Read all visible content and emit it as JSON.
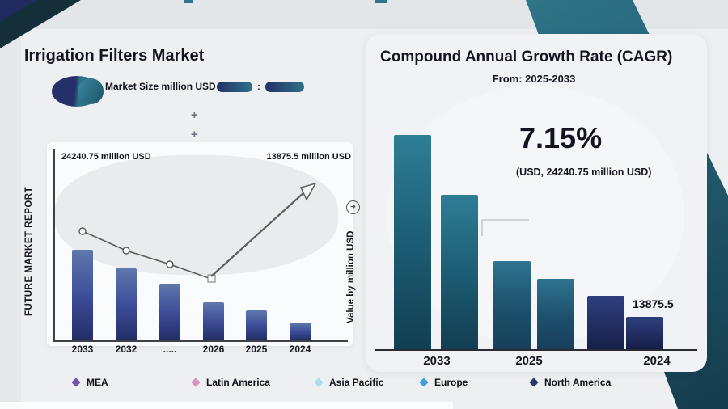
{
  "colors": {
    "page_bg": "#edeff1",
    "band_teal_light": "#2f7489",
    "band_teal_dark": "#143c4d",
    "corner_dark": "#142f3a",
    "corner_navy": "#1f2a5e",
    "bar_left_top": "#5f78ad",
    "bar_left_bottom": "#232e66"
  },
  "left_section": {
    "title": "Irrigation Filters Market",
    "legend_label": "Market Size million USD",
    "watermark": "FUTURE MARKET REPORT",
    "max_label": "24240.75 million USD",
    "min_label": "13875.5 million USD",
    "plus_mark": "+",
    "pill_separator": ":"
  },
  "right_section": {
    "title": "Compound Annual Growth Rate (CAGR)",
    "subtitle": "From: 2025-2033",
    "cagr_value": "7.15%",
    "cagr_note": "(USD, 24240.75 million USD)",
    "axis_label": "Value by million USD",
    "callout_value": "13875.5"
  },
  "legend": [
    {
      "label": "MEA",
      "color": "#7057a8"
    },
    {
      "label": "Latin America",
      "color": "#d892bd"
    },
    {
      "label": "Asia Pacific",
      "color": "#aadcf0"
    },
    {
      "label": "Europe",
      "color": "#3fa0dc"
    },
    {
      "label": "North America",
      "color": "#2c3a6b"
    }
  ],
  "chart_data": [
    {
      "type": "bar",
      "title": "Irrigation Filters Market Size (million USD), estimated from bar heights",
      "categories": [
        "2033",
        "2032",
        ".....",
        "2026",
        "2025",
        "2024"
      ],
      "values": [
        24240.75,
        21590,
        19400,
        16760,
        15600,
        13875.5
      ],
      "ylabel": "Market Size million USD",
      "ylim": [
        13875.5,
        24240.75
      ],
      "grid": false,
      "annotations": [
        "24240.75 million USD",
        "13875.5 million USD"
      ],
      "trend": "declining marker line from 2033 to mid years, then large arrow rising to upper right"
    },
    {
      "type": "bar",
      "title": "CAGR 7.15% (USD, 24240.75 million USD), From: 2025-2033",
      "categories": [
        "2033",
        "2025",
        "2024"
      ],
      "series": [
        {
          "name": "bar-1",
          "values_relative": [
            1.0,
            0.41,
            0.25
          ]
        },
        {
          "name": "bar-2",
          "values_relative": [
            0.72,
            0.33,
            0.15
          ]
        }
      ],
      "ylabel": "Value by million USD",
      "grid": false,
      "annotation": "13875.5 at 2024"
    }
  ]
}
